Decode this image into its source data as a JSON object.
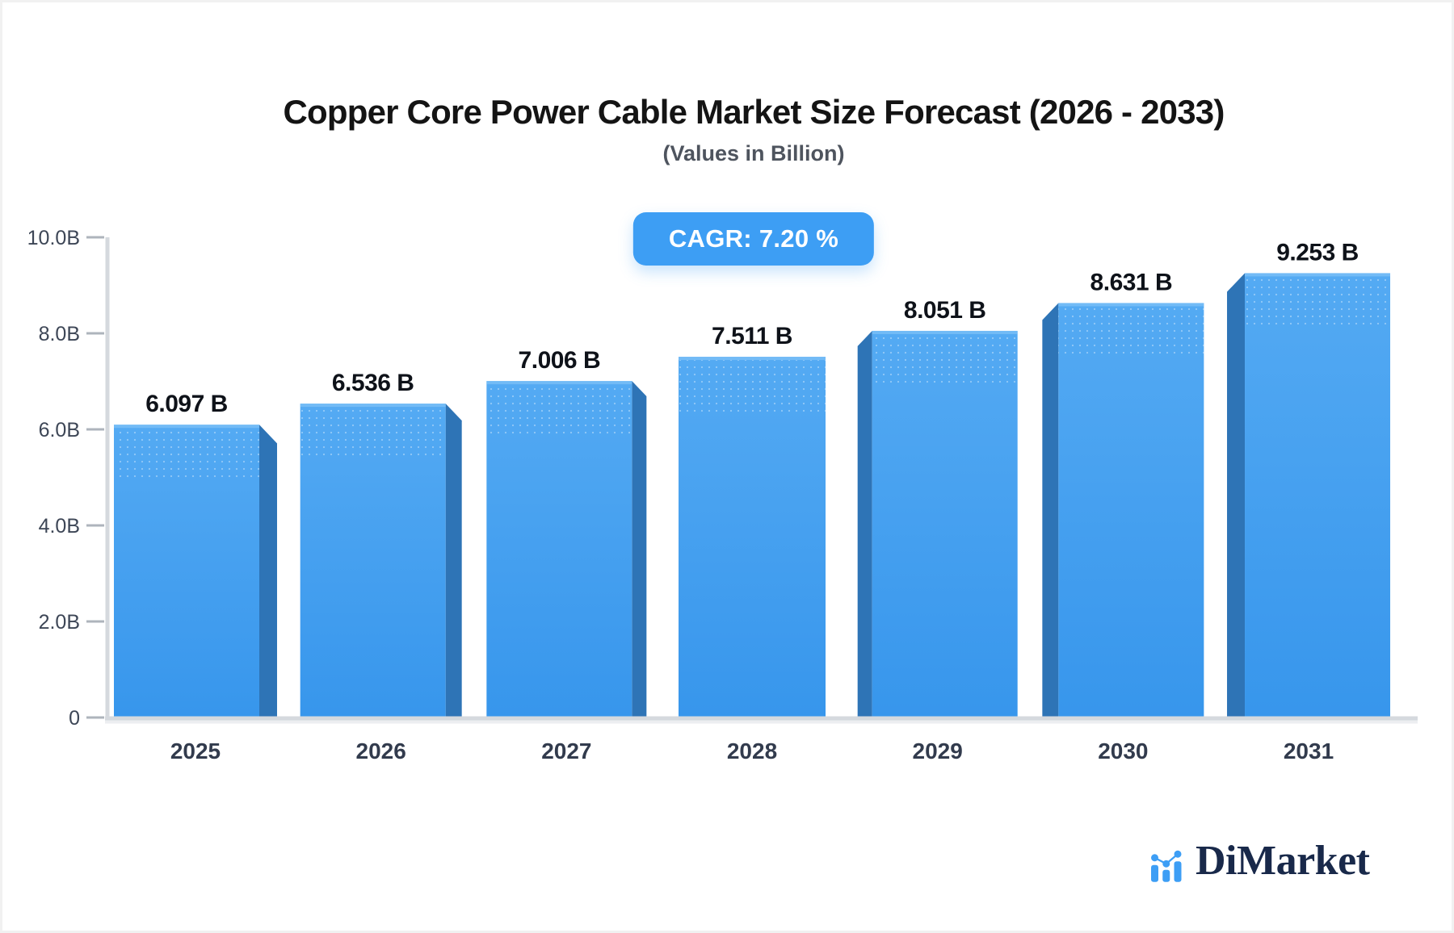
{
  "cagr_badge": {
    "label": "CAGR: 7.20 %"
  },
  "logo": {
    "text": "DiMarket",
    "icon": "mini-bar-chart-with-trend-dots"
  },
  "colors": {
    "bar_top": "#54AAF3",
    "bar_bottom": "#3796EC",
    "bar_side": "#2E74B6",
    "bar_top_edge": "#7FC2F7",
    "badge_bg": "#3D9EF4",
    "badge_text": "#FFFFFF",
    "axis": "#D5D9DE",
    "axis_shadow": "#ECEEF1",
    "tick": "#AEB4BC",
    "y_label": "#3D4656",
    "x_label": "#323B4D",
    "value_label": "#0E1219",
    "title": "#141414",
    "subtitle": "#4E545E",
    "logo_text": "#19294A",
    "logo_icon": "#3D9EF5",
    "background": "#FFFFFF"
  },
  "chart_data": {
    "type": "bar",
    "title": "Copper Core Power Cable Market Size Forecast (2026 - 2033)",
    "subtitle": "(Values in Billion)",
    "categories": [
      "2025",
      "2026",
      "2027",
      "2028",
      "2029",
      "2030",
      "2031"
    ],
    "values": [
      6.097,
      6.536,
      7.006,
      7.511,
      8.051,
      8.631,
      9.253
    ],
    "value_labels": [
      "6.097 B",
      "6.536 B",
      "7.006 B",
      "7.511 B",
      "8.051 B",
      "8.631 B",
      "9.253 B"
    ],
    "xlabel": "",
    "ylabel": "",
    "ylim": [
      0,
      10
    ],
    "y_ticks": [
      {
        "value": 0,
        "label": "0"
      },
      {
        "value": 2,
        "label": "2.0B"
      },
      {
        "value": 4,
        "label": "4.0B"
      },
      {
        "value": 6,
        "label": "6.0B"
      },
      {
        "value": 8,
        "label": "8.0B"
      },
      {
        "value": 10,
        "label": "10.0B"
      }
    ],
    "grid": false,
    "legend": "none",
    "style": "3d-beveled-bars-perspective-to-center"
  }
}
